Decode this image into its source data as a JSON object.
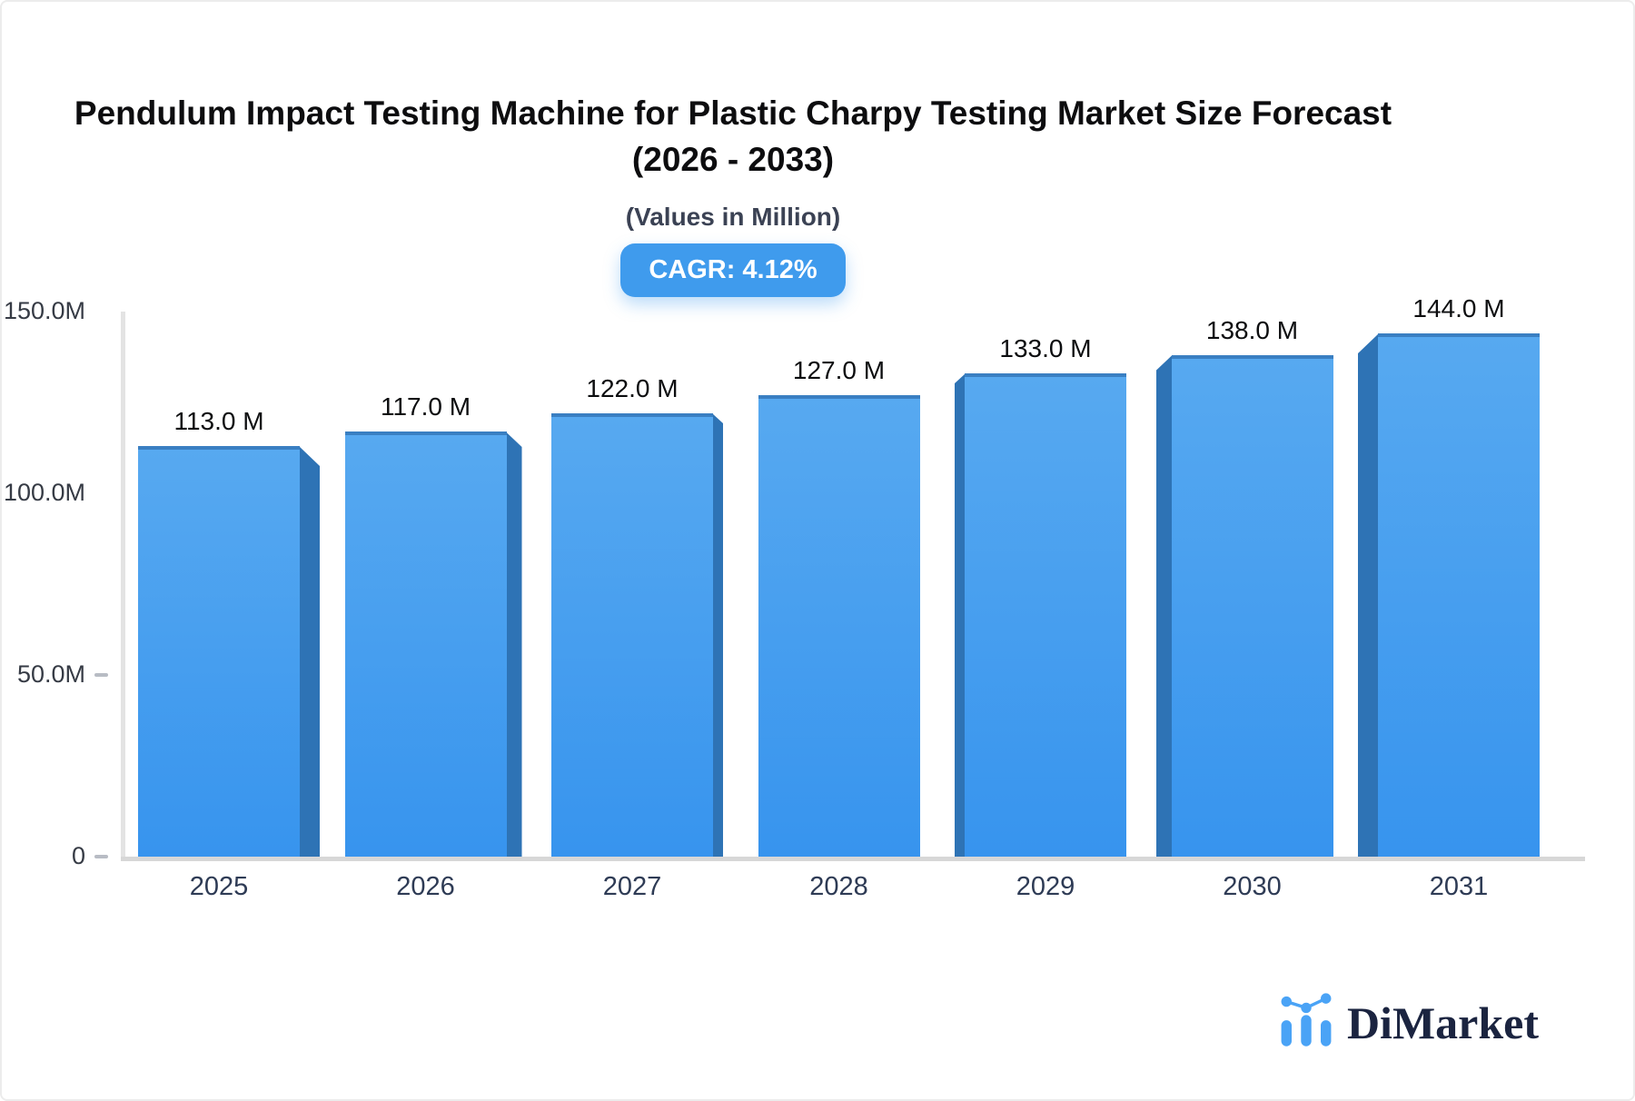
{
  "header": {
    "title_line1": "Pendulum Impact Testing Machine for Plastic Charpy Testing Market Size Forecast",
    "title_line2": "(2026 - 2033)",
    "subtitle": "(Values in Million)",
    "cagr_badge": "CAGR: 4.12%"
  },
  "chart_data": {
    "type": "bar",
    "title": "Pendulum Impact Testing Machine for Plastic Charpy Testing Market Size Forecast (2026 - 2033)",
    "subtitle": "(Values in Million)",
    "cagr_percent": 4.12,
    "categories": [
      "2025",
      "2026",
      "2027",
      "2028",
      "2029",
      "2030",
      "2031"
    ],
    "values": [
      113,
      117,
      122,
      127,
      133,
      138,
      144
    ],
    "bar_labels": [
      "113.0 M",
      "117.0 M",
      "122.0 M",
      "127.0 M",
      "133.0 M",
      "138.0 M",
      "144.0 M"
    ],
    "unit": "Million",
    "ylim": [
      0,
      150
    ],
    "yticks": [
      {
        "label": "150.0M",
        "value": 150
      },
      {
        "label": "100.0M",
        "value": 100
      },
      {
        "label": "50.0M",
        "value": 50
      },
      {
        "label": "0",
        "value": 0
      }
    ],
    "grid": false,
    "legend": "none",
    "bar_style": "3d-blue"
  },
  "branding": {
    "logo_text": "DiMarket",
    "logo_icon": "bar-line-chart-icon"
  },
  "colors": {
    "accent_blue": "#3f9bed",
    "bar_top": "#57a9f0",
    "bar_bottom": "#3794ee",
    "bar_edge": "#3a7fc2",
    "bar_side": "#2e73b5",
    "logo_blue": "#4aa3f6",
    "navy": "#1b2440",
    "axis_gray": "#e3e3e3",
    "baseline_gray": "#d7d7d7"
  }
}
